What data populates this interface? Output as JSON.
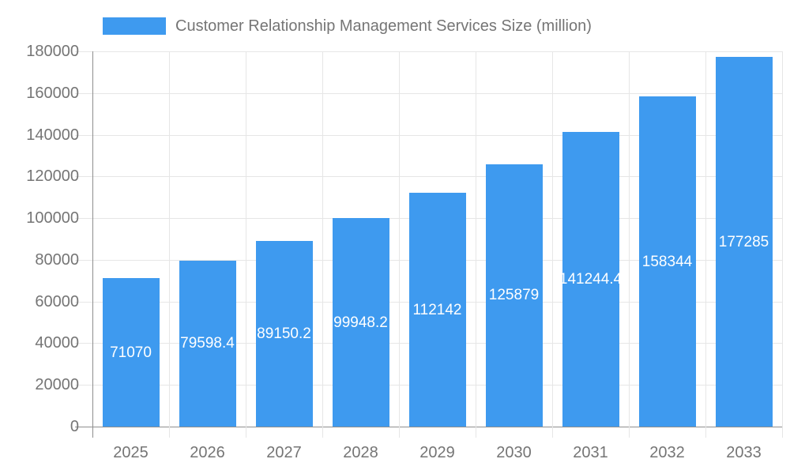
{
  "legend": {
    "label": "Customer Relationship Management Services Size (million)"
  },
  "chart_data": {
    "type": "bar",
    "title": "Customer Relationship Management Services Size (million)",
    "categories": [
      "2025",
      "2026",
      "2027",
      "2028",
      "2029",
      "2030",
      "2031",
      "2032",
      "2033"
    ],
    "series": [
      {
        "name": "Customer Relationship Management Services Size (million)",
        "color": "#3E9AEF",
        "values": [
          71070,
          79598.4,
          89150.2,
          99948.2,
          112142,
          125879,
          141244.4,
          158344,
          177285
        ]
      }
    ],
    "xlabel": "",
    "ylabel": "",
    "ylim": [
      0,
      180000
    ],
    "y_ticks": [
      0,
      20000,
      40000,
      60000,
      80000,
      100000,
      120000,
      140000,
      160000,
      180000
    ],
    "grid": true,
    "legend_position": "top",
    "bar_labels_visible": true,
    "colors": {
      "bar": "#3E9AEF",
      "grid_line": "#E6E6E6",
      "axis_line": "#8E8E8E",
      "tick_text": "#757575",
      "bar_label_text": "#FFFFFF",
      "background": "#FFFFFF"
    }
  }
}
